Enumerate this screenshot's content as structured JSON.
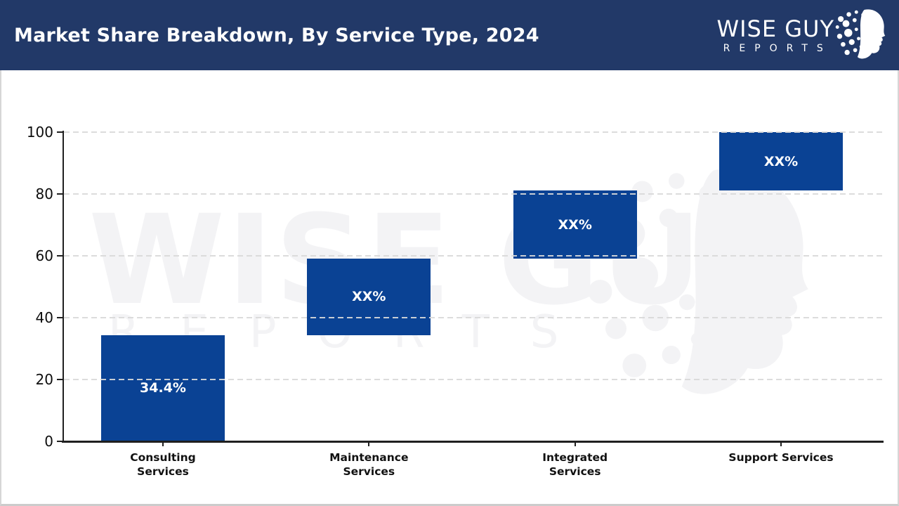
{
  "header": {
    "title": "Market Share Breakdown, By Service Type, 2024",
    "logo": {
      "line1": "WISE GUY",
      "line2": "REPORTS"
    }
  },
  "watermark": {
    "line1": "WISE GUY",
    "line2": "REPORTS"
  },
  "colors": {
    "header_bg": "#223968",
    "bar": "#0a4294",
    "grid": "#d9d9d9",
    "axis": "#1f1f1f",
    "watermark": "#f3f3f5",
    "bar_label_text": "#ffffff",
    "tick_text": "#0d0d0d"
  },
  "chart_data": {
    "type": "bar",
    "subtype": "waterfall",
    "title": "Market Share Breakdown, By Service Type, 2024",
    "categories": [
      "Consulting Services",
      "Maintenance Services",
      "Integrated Services",
      "Support Services"
    ],
    "category_lines": [
      [
        "Consulting",
        "Services"
      ],
      [
        "Maintenance",
        "Services"
      ],
      [
        "Integrated",
        "Services"
      ],
      [
        "Support Services"
      ]
    ],
    "segments": [
      {
        "category": "Consulting Services",
        "start": 0,
        "end": 34.4,
        "label": "34.4%"
      },
      {
        "category": "Maintenance Services",
        "start": 34.4,
        "end": 59.1,
        "label": "XX%"
      },
      {
        "category": "Integrated Services",
        "start": 59.1,
        "end": 81.1,
        "label": "XX%"
      },
      {
        "category": "Support Services",
        "start": 81.1,
        "end": 100.0,
        "label": "XX%"
      }
    ],
    "xlabel": "",
    "ylabel": "",
    "ylim": [
      0,
      100
    ],
    "yticks": [
      0,
      20,
      40,
      60,
      80,
      100
    ],
    "grid": "horizontal-dashed",
    "legend": "none"
  }
}
